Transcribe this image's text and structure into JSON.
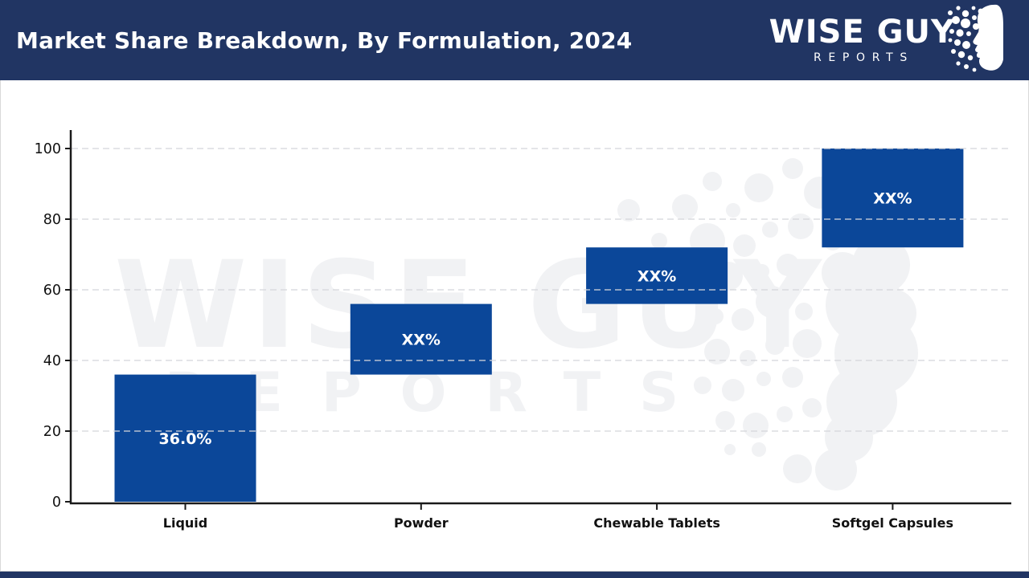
{
  "header": {
    "title": "Market Share Breakdown, By Formulation, 2024",
    "logo": {
      "line1": "WISE GUY",
      "line2": "REPORTS"
    }
  },
  "watermark": {
    "line1": "WISE GUY",
    "line2": "REPORTS"
  },
  "colors": {
    "header_bg": "#213563",
    "footer_bg": "#213563",
    "bar": "#0b4799",
    "bar_label": "#ffffff",
    "grid": "#d5d7db",
    "axis": "#1a1a1a",
    "tick_label": "#111111",
    "watermark": "#f1f2f4"
  },
  "chart_data": {
    "type": "bar",
    "subtype": "waterfall",
    "title": "Market Share Breakdown, By Formulation, 2024",
    "categories": [
      "Liquid",
      "Powder",
      "Chewable Tablets",
      "Softgel Capsules"
    ],
    "bars": [
      {
        "category": "Liquid",
        "start": 0,
        "end": 36,
        "label": "36.0%"
      },
      {
        "category": "Powder",
        "start": 36,
        "end": 56,
        "label": "XX%"
      },
      {
        "category": "Chewable Tablets",
        "start": 56,
        "end": 72,
        "label": "XX%"
      },
      {
        "category": "Softgel Capsules",
        "start": 72,
        "end": 100,
        "label": "XX%"
      }
    ],
    "xlabel": "",
    "ylabel": "",
    "yticks": [
      0,
      20,
      40,
      60,
      80,
      100
    ],
    "ylim": [
      0,
      105
    ],
    "grid": "dashed-horizontal",
    "legend": false
  }
}
